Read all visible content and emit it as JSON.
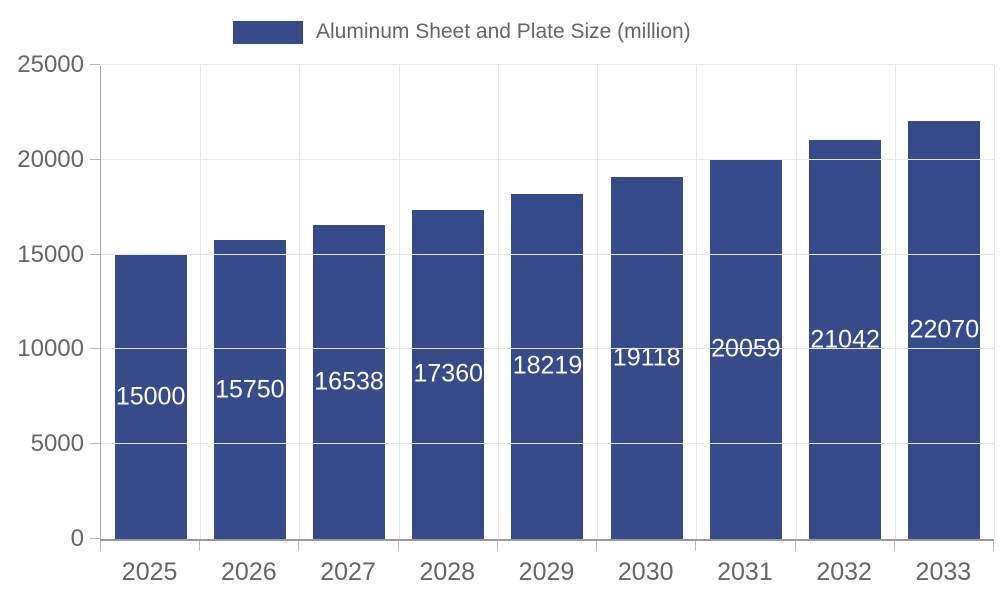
{
  "legend": {
    "label": "Aluminum Sheet and Plate Size (million)"
  },
  "colors": {
    "bar": "#374a89",
    "value_label": "#ffffff",
    "axis_text": "#666666",
    "gridline": "#e6e6e6",
    "axis_line": "#999999",
    "tick": "#bbbbbb",
    "background": "#ffffff"
  },
  "chart_data": {
    "type": "bar",
    "title": "Aluminum Sheet and Plate Size (million)",
    "categories": [
      "2025",
      "2026",
      "2027",
      "2028",
      "2029",
      "2030",
      "2031",
      "2032",
      "2033"
    ],
    "values": [
      15000,
      15750,
      16538,
      17360,
      18219,
      19118,
      20059,
      21042,
      22070
    ],
    "value_labels": [
      "15000",
      "15750",
      "16538",
      "17360",
      "18219",
      "19118",
      "20059",
      "21042",
      "22070"
    ],
    "xlabel": "",
    "ylabel": "",
    "ylim": [
      0,
      25000
    ],
    "ytick_interval": 5000,
    "yticks": [
      0,
      5000,
      10000,
      15000,
      20000,
      25000
    ],
    "ytick_labels": [
      "0",
      "5000",
      "10000",
      "15000",
      "20000",
      "25000"
    ],
    "grid": true,
    "legend_position": "top",
    "value_label_placement": "inside-center"
  }
}
